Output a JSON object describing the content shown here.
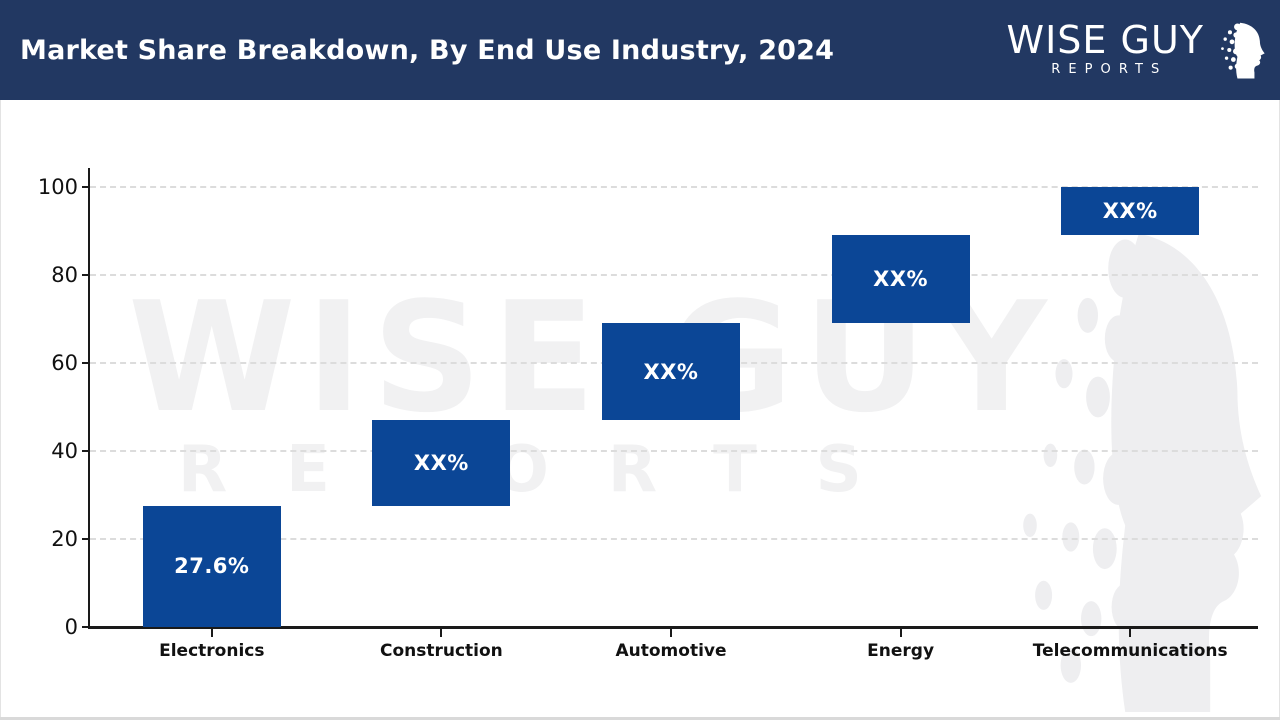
{
  "header": {
    "title": "Market Share Breakdown, By End Use Industry, 2024",
    "logo": {
      "line1": "WISE GUY",
      "line2": "REPORTS"
    }
  },
  "watermark": {
    "line1": "WISE GUY",
    "line2": "REPORTS"
  },
  "colors": {
    "header_bg": "#223862",
    "bar_blue": "#0b4696",
    "gridline": "#dcdcdc",
    "watermark": "#f1f1f2",
    "axis": "#1a1a1a"
  },
  "chart_data": {
    "type": "bar",
    "subtype": "floating-waterfall",
    "title": "Market Share Breakdown, By End Use Industry, 2024",
    "categories": [
      "Electronics",
      "Construction",
      "Automotive",
      "Energy",
      "Telecommunications"
    ],
    "bars": [
      {
        "category": "Electronics",
        "start": 0,
        "end": 27.6,
        "label": "27.6%"
      },
      {
        "category": "Construction",
        "start": 27.6,
        "end": 47,
        "label": "XX%"
      },
      {
        "category": "Automotive",
        "start": 47,
        "end": 69,
        "label": "XX%"
      },
      {
        "category": "Energy",
        "start": 69,
        "end": 89,
        "label": "XX%"
      },
      {
        "category": "Telecommunications",
        "start": 89,
        "end": 100,
        "label": "XX%"
      }
    ],
    "yticks": [
      0,
      20,
      40,
      60,
      80,
      100
    ],
    "ylim": [
      0,
      105
    ],
    "xlabel": "",
    "ylabel": "",
    "grid": "horizontal-dashed",
    "legend": "none",
    "bar_color": "#0b4696"
  }
}
